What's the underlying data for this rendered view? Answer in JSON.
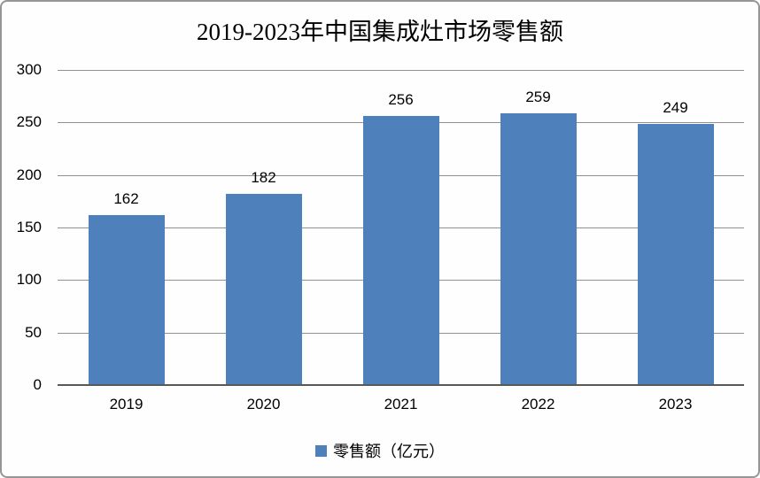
{
  "chart_data": {
    "type": "bar",
    "title": "2019-2023年中国集成灶市场零售额",
    "categories": [
      "2019",
      "2020",
      "2021",
      "2022",
      "2023"
    ],
    "series": [
      {
        "name": "零售额（亿元）",
        "values": [
          162,
          182,
          256,
          259,
          249
        ]
      }
    ],
    "bar_labels": [
      162,
      182,
      256,
      259,
      249
    ],
    "xlabel": "",
    "ylabel": "",
    "ylim": [
      0,
      300
    ],
    "ytick_step": 50,
    "yticks": [
      0,
      50,
      100,
      150,
      200,
      250,
      300
    ],
    "grid": "horizontal",
    "legend_position": "bottom",
    "colors": {
      "bar": "#4E81BC",
      "gridline": "#919191",
      "axis_line": "#595959",
      "text": "#000000",
      "frame_border": "#969696"
    }
  }
}
